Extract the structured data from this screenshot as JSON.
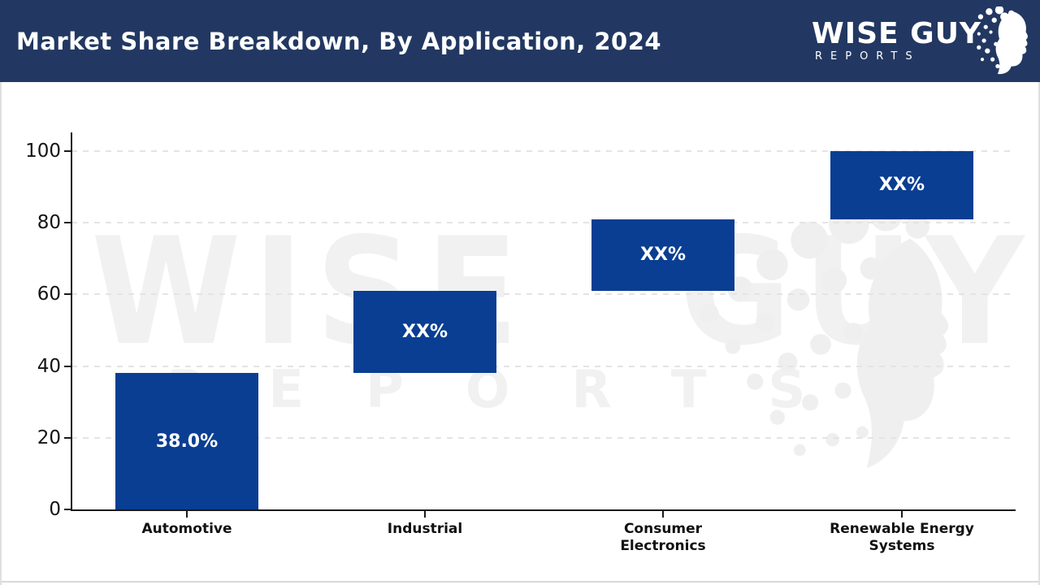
{
  "header": {
    "title": "Market Share Breakdown, By Application, 2024",
    "bg_color": "#223862",
    "logo": {
      "line1": "WISE GUY",
      "line2": "REPORTS"
    }
  },
  "watermark": {
    "line1": "WISE GUY",
    "line2": "REPORTS"
  },
  "chart_data": {
    "type": "bar",
    "subtype": "waterfall-stacked",
    "title": "Market Share Breakdown, By Application, 2024",
    "categories": [
      "Automotive",
      "Industrial",
      "Consumer Electronics",
      "Renewable Energy Systems"
    ],
    "category_tick_labels": [
      "Automotive",
      "Industrial",
      "Consumer\nElectronics",
      "Renewable Energy\nSystems"
    ],
    "segments": [
      {
        "category": "Automotive",
        "start": 0,
        "end": 38,
        "value": 38.0,
        "label": "38.0%"
      },
      {
        "category": "Industrial",
        "start": 38,
        "end": 61,
        "value": 23,
        "label": "XX%"
      },
      {
        "category": "Consumer Electronics",
        "start": 61,
        "end": 81,
        "value": 20,
        "label": "XX%"
      },
      {
        "category": "Renewable Energy Systems",
        "start": 81,
        "end": 100,
        "value": 19,
        "label": "XX%"
      }
    ],
    "yticks": [
      0,
      20,
      40,
      60,
      80,
      100
    ],
    "ylim": [
      0,
      105
    ],
    "xlabel": "",
    "ylabel": "",
    "grid": "dashed-horizontal",
    "legend": "none",
    "bar_color": "#0a3e92",
    "bar_label_color": "#ffffff",
    "axis_color": "#1a1a1a"
  }
}
